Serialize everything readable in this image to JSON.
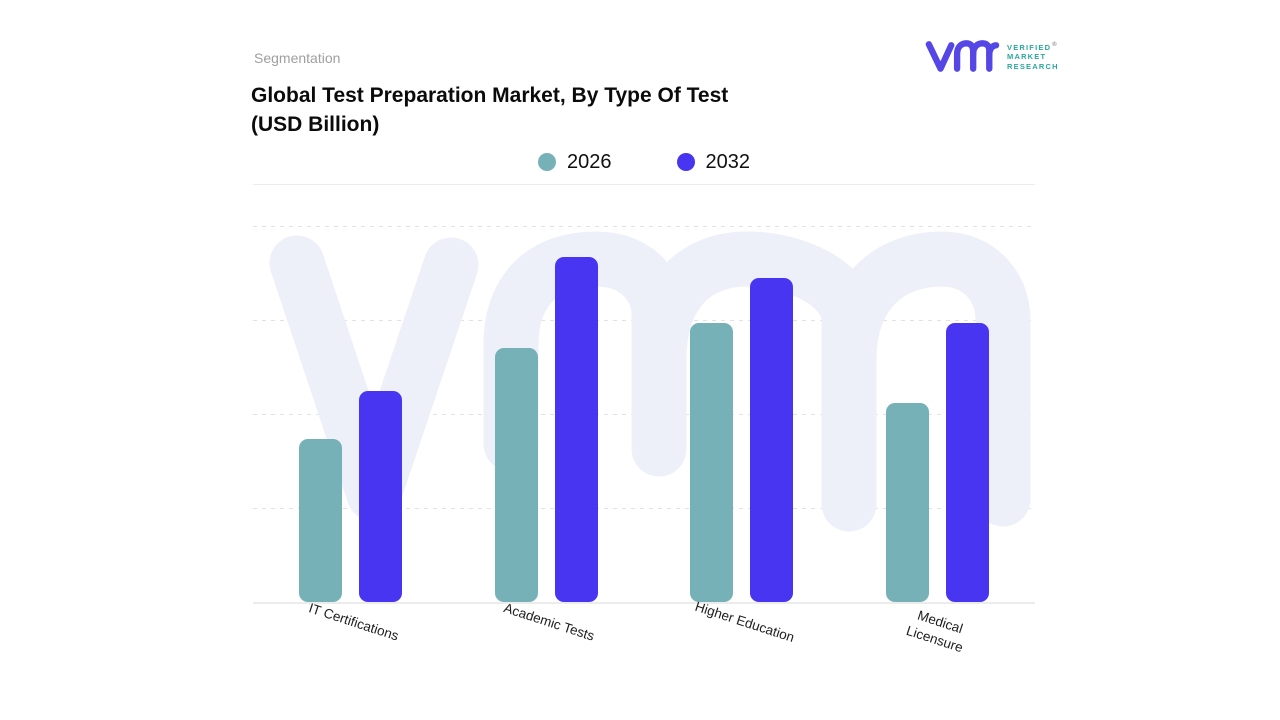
{
  "header": {
    "eyebrow": "Segmentation",
    "title_line1": "Global Test Preparation Market, By Type Of Test",
    "title_line2": "(USD Billion)"
  },
  "logo": {
    "mark": "vmr-monogram",
    "line1": "VERIFIED",
    "line2": "MARKET",
    "line3": "RESEARCH",
    "registered_mark": "®",
    "mark_color": "#5546e6",
    "text_color": "#2aa79f"
  },
  "legend": {
    "items": [
      {
        "label": "2026",
        "color": "#75b1b6"
      },
      {
        "label": "2032",
        "color": "#4735f2"
      }
    ]
  },
  "chart_data": {
    "type": "bar",
    "title": "Global Test Preparation Market, By Type Of Test (USD Billion)",
    "categories": [
      "IT Certifications",
      "Academic Tests",
      "Higher Education",
      "Medical Licensure"
    ],
    "x_tick_labels": [
      "IT Certifications",
      "Academic Tests",
      "Higher Education",
      "Medical\nLicensure"
    ],
    "series": [
      {
        "name": "2026",
        "color": "#75b1b6",
        "values": [
          1.73,
          2.7,
          2.97,
          2.12
        ]
      },
      {
        "name": "2032",
        "color": "#4735f2",
        "values": [
          2.24,
          3.67,
          3.45,
          2.97
        ]
      }
    ],
    "xlabel": "",
    "ylabel": "",
    "y_axis_labels_visible": false,
    "ylim": [
      0,
      4.47
    ],
    "gridlines": "horizontal-dashed",
    "gridline_count": 4,
    "legend_position": "top-center",
    "note": "No numeric axis labels are shown in the chart; values are estimated in gridline units (1 unit = one gridline step)."
  },
  "watermark": {
    "name": "vmr-watermark",
    "color": "#eef0f9"
  },
  "colors": {
    "teal": "#75b1b6",
    "blue": "#4735f2",
    "background": "#ffffff"
  }
}
